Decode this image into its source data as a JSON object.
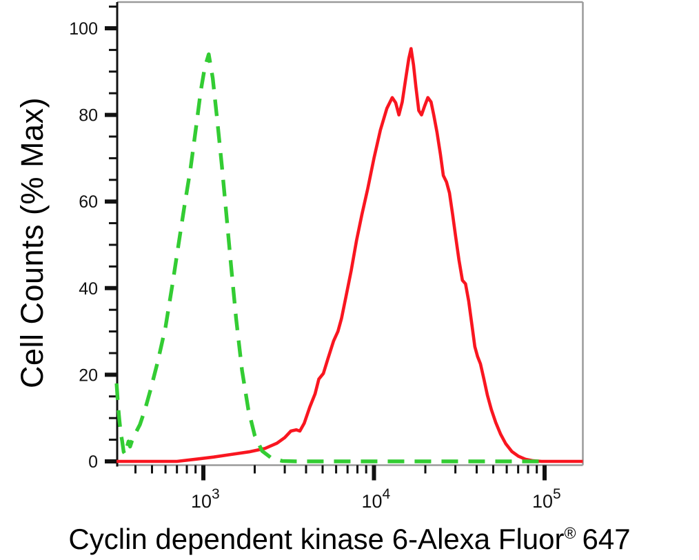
{
  "chart_data": {
    "type": "line",
    "subtype": "flow-cytometry-histogram-overlay",
    "title": "",
    "legend": "none",
    "x_axis": {
      "label_main": "Cyclin dependent kinase 6-Alexa Fluor",
      "label_reg": "®",
      "label_suffix": "647",
      "scale": "log",
      "range": [
        310,
        168000
      ],
      "decade_ticks": [
        {
          "base": "10",
          "exp": "3",
          "value": 1000
        },
        {
          "base": "10",
          "exp": "4",
          "value": 10000
        },
        {
          "base": "10",
          "exp": "5",
          "value": 100000
        }
      ],
      "minor_tick_multiples": [
        2,
        3,
        4,
        5,
        6,
        7,
        8,
        9
      ]
    },
    "y_axis": {
      "label": "Cell Counts (% Max)",
      "range": [
        0,
        100
      ],
      "major_ticks": [
        {
          "value": 0,
          "label": "0"
        },
        {
          "value": 20,
          "label": "20"
        },
        {
          "value": 40,
          "label": "40"
        },
        {
          "value": 60,
          "label": "60"
        },
        {
          "value": 80,
          "label": "80"
        },
        {
          "value": 100,
          "label": "100"
        }
      ],
      "minor_step": 5
    },
    "colors": {
      "frame_gray": "#9a9a9a",
      "tick_black": "#111111",
      "green_series": "#33cc33",
      "red_series": "#f91620"
    },
    "series": [
      {
        "id": "red_solid",
        "line_style": "solid",
        "color": "#f91620",
        "points": [
          [
            310,
            0
          ],
          [
            700,
            0
          ],
          [
            950,
            0.6
          ],
          [
            1150,
            1
          ],
          [
            1450,
            1.6
          ],
          [
            1850,
            2.2
          ],
          [
            2300,
            3
          ],
          [
            2700,
            4.2
          ],
          [
            3000,
            5.5
          ],
          [
            3260,
            7
          ],
          [
            3500,
            7.3
          ],
          [
            3680,
            7
          ],
          [
            3900,
            8.8
          ],
          [
            4200,
            12.5
          ],
          [
            4520,
            15.6
          ],
          [
            4750,
            19
          ],
          [
            5050,
            20.3
          ],
          [
            5350,
            23.5
          ],
          [
            5800,
            27.8
          ],
          [
            6150,
            30
          ],
          [
            6450,
            33
          ],
          [
            6850,
            38
          ],
          [
            7350,
            44
          ],
          [
            7900,
            51
          ],
          [
            8500,
            57
          ],
          [
            9200,
            63
          ],
          [
            10000,
            70
          ],
          [
            10900,
            76.5
          ],
          [
            11900,
            81.5
          ],
          [
            12800,
            84
          ],
          [
            13400,
            82.8
          ],
          [
            14000,
            80
          ],
          [
            14650,
            83
          ],
          [
            15300,
            88
          ],
          [
            16000,
            93
          ],
          [
            16500,
            95.3
          ],
          [
            17050,
            91.5
          ],
          [
            17600,
            86.5
          ],
          [
            18300,
            81
          ],
          [
            19000,
            80
          ],
          [
            19800,
            82
          ],
          [
            20700,
            84
          ],
          [
            21600,
            83
          ],
          [
            22400,
            80
          ],
          [
            23400,
            76
          ],
          [
            24500,
            71
          ],
          [
            25500,
            66
          ],
          [
            26600,
            64.5
          ],
          [
            27700,
            62
          ],
          [
            28900,
            57
          ],
          [
            30100,
            52
          ],
          [
            31500,
            46.5
          ],
          [
            33000,
            41.8
          ],
          [
            34400,
            41
          ],
          [
            35900,
            37
          ],
          [
            37500,
            31.5
          ],
          [
            39000,
            26.5
          ],
          [
            40500,
            24.2
          ],
          [
            42100,
            22.5
          ],
          [
            44100,
            19
          ],
          [
            46200,
            15.3
          ],
          [
            48700,
            12
          ],
          [
            51700,
            9
          ],
          [
            55200,
            6.3
          ],
          [
            59200,
            4.1
          ],
          [
            64200,
            2.3
          ],
          [
            70200,
            1.2
          ],
          [
            77200,
            0.5
          ],
          [
            85500,
            0.15
          ],
          [
            96000,
            0
          ],
          [
            168000,
            0
          ]
        ]
      },
      {
        "id": "green_dashed",
        "line_style": "dashed",
        "color": "#33cc33",
        "points": [
          [
            310,
            18
          ],
          [
            316,
            13
          ],
          [
            322,
            9.5
          ],
          [
            328,
            6.5
          ],
          [
            334,
            4.8
          ],
          [
            341,
            2.2
          ],
          [
            349,
            1.6
          ],
          [
            356,
            3.2
          ],
          [
            364,
            4.6
          ],
          [
            372,
            3.4
          ],
          [
            382,
            4.8
          ],
          [
            400,
            6.5
          ],
          [
            425,
            8.5
          ],
          [
            455,
            12
          ],
          [
            490,
            16.5
          ],
          [
            540,
            23
          ],
          [
            600,
            31
          ],
          [
            660,
            41
          ],
          [
            715,
            50
          ],
          [
            775,
            59
          ],
          [
            840,
            67.5
          ],
          [
            905,
            77
          ],
          [
            965,
            85.5
          ],
          [
            1020,
            91
          ],
          [
            1075,
            94
          ],
          [
            1135,
            88.5
          ],
          [
            1205,
            79
          ],
          [
            1285,
            68
          ],
          [
            1365,
            57
          ],
          [
            1455,
            45
          ],
          [
            1555,
            33
          ],
          [
            1685,
            21
          ],
          [
            1835,
            12
          ],
          [
            2000,
            6
          ],
          [
            2210,
            2.4
          ],
          [
            2500,
            0.8
          ],
          [
            2900,
            0.1
          ],
          [
            3500,
            0
          ],
          [
            100000,
            0
          ]
        ]
      }
    ]
  }
}
